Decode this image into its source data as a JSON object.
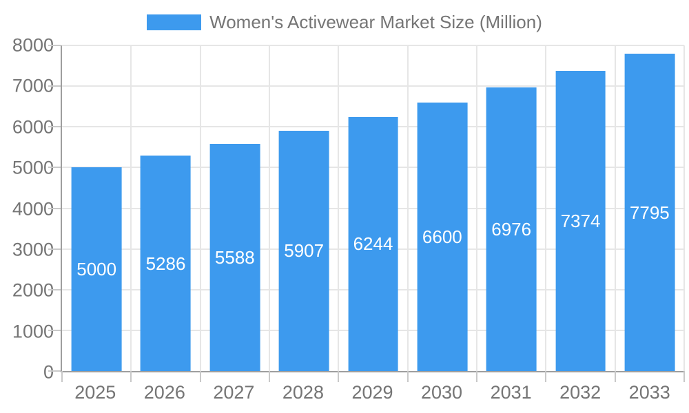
{
  "chart_data": {
    "type": "bar",
    "title": "Women's Activewear Market Size (Million)",
    "categories": [
      "2025",
      "2026",
      "2027",
      "2028",
      "2029",
      "2030",
      "2031",
      "2032",
      "2033"
    ],
    "values": [
      5000,
      5286,
      5588,
      5907,
      6244,
      6600,
      6976,
      7374,
      7795
    ],
    "series": [
      {
        "name": "Women's Activewear Market Size (Million)",
        "values": [
          5000,
          5286,
          5588,
          5907,
          6244,
          6600,
          6976,
          7374,
          7795
        ]
      }
    ],
    "xlabel": "",
    "ylabel": "",
    "ylim": [
      0,
      8000
    ],
    "ytick_step": 1000,
    "y_tick_labels": [
      "0",
      "1000",
      "2000",
      "3000",
      "4000",
      "5000",
      "6000",
      "7000",
      "8000"
    ],
    "grid": true,
    "legend_position": "top-center",
    "bar_labels_inside": true,
    "colors": {
      "bar": "#3d9aee",
      "bar_label_text": "#ffffff",
      "axis_text": "#757575",
      "axis_line": "#9e9e9e",
      "gridline": "#e6e6e6",
      "tick": "#c9c9c9",
      "background": "#ffffff"
    }
  }
}
